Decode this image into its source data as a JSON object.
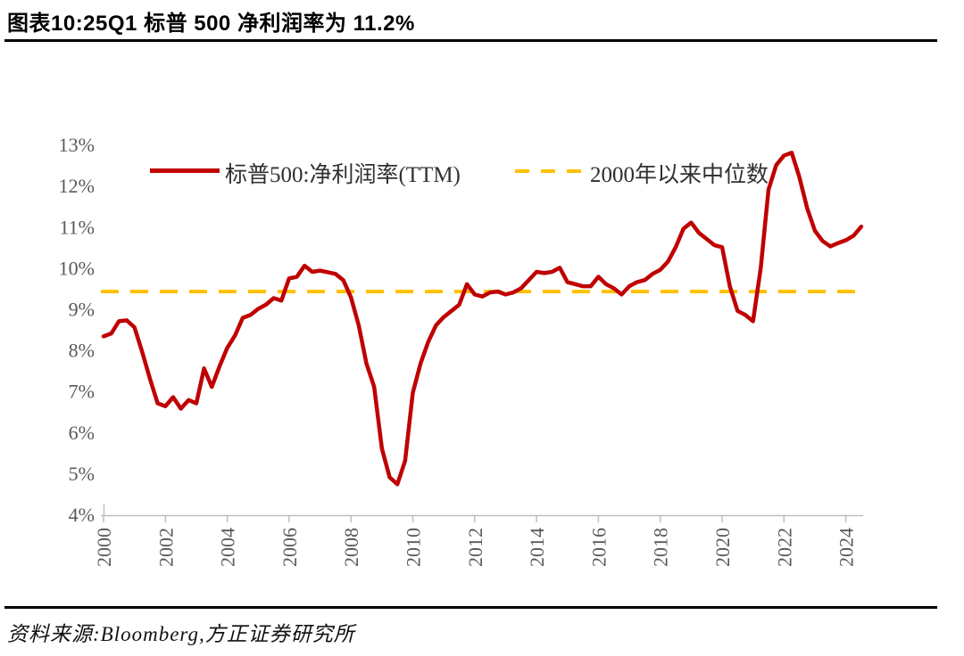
{
  "header": {
    "title": "图表10:25Q1 标普 500 净利润率为 11.2%"
  },
  "footer": {
    "source": "资料来源:Bloomberg,方正证券研究所"
  },
  "colors": {
    "series": "#C00000",
    "median": "#FFC000",
    "axis": "#BFBFBF",
    "tick_label": "#595959",
    "legend_text": "#303030"
  },
  "chart_data": {
    "type": "line",
    "title": "图表10:25Q1 标普 500 净利润率为 11.2%",
    "xlabel": "",
    "ylabel": "",
    "ylim": [
      4,
      13
    ],
    "xlim": [
      2000,
      2024.6
    ],
    "grid": false,
    "legend_position": "top",
    "y_ticks": [
      13,
      12,
      11,
      10,
      9,
      8,
      7,
      6,
      5,
      4
    ],
    "y_tick_suffix": "%",
    "x_ticks": [
      2000,
      2002,
      2004,
      2006,
      2008,
      2010,
      2012,
      2014,
      2016,
      2018,
      2020,
      2022,
      2024
    ],
    "x_start": 2000,
    "x_step": 0.25,
    "series": [
      {
        "name": "标普500:净利润率(TTM)",
        "color": "#C00000",
        "values": [
          8.33,
          8.4,
          8.7,
          8.72,
          8.55,
          7.95,
          7.3,
          6.7,
          6.63,
          6.85,
          6.57,
          6.78,
          6.7,
          7.55,
          7.1,
          7.6,
          8.05,
          8.35,
          8.78,
          8.85,
          9.0,
          9.1,
          9.26,
          9.2,
          9.74,
          9.78,
          10.05,
          9.9,
          9.93,
          9.89,
          9.85,
          9.7,
          9.28,
          8.6,
          7.67,
          7.1,
          5.6,
          4.9,
          4.73,
          5.3,
          6.96,
          7.67,
          8.2,
          8.6,
          8.8,
          8.95,
          9.1,
          9.6,
          9.35,
          9.3,
          9.4,
          9.42,
          9.35,
          9.4,
          9.5,
          9.7,
          9.9,
          9.87,
          9.9,
          10.0,
          9.65,
          9.6,
          9.55,
          9.55,
          9.78,
          9.6,
          9.5,
          9.35,
          9.55,
          9.65,
          9.7,
          9.85,
          9.95,
          10.15,
          10.5,
          10.95,
          11.1,
          10.85,
          10.7,
          10.55,
          10.5,
          9.55,
          8.95,
          8.85,
          8.7,
          10.0,
          11.9,
          12.5,
          12.73,
          12.8,
          12.2,
          11.45,
          10.9,
          10.65,
          10.52,
          10.6,
          10.67,
          10.78,
          11.0
        ]
      }
    ],
    "median": {
      "label": "2000年以来中位数",
      "value": 9.42,
      "color": "#FFC000"
    }
  }
}
